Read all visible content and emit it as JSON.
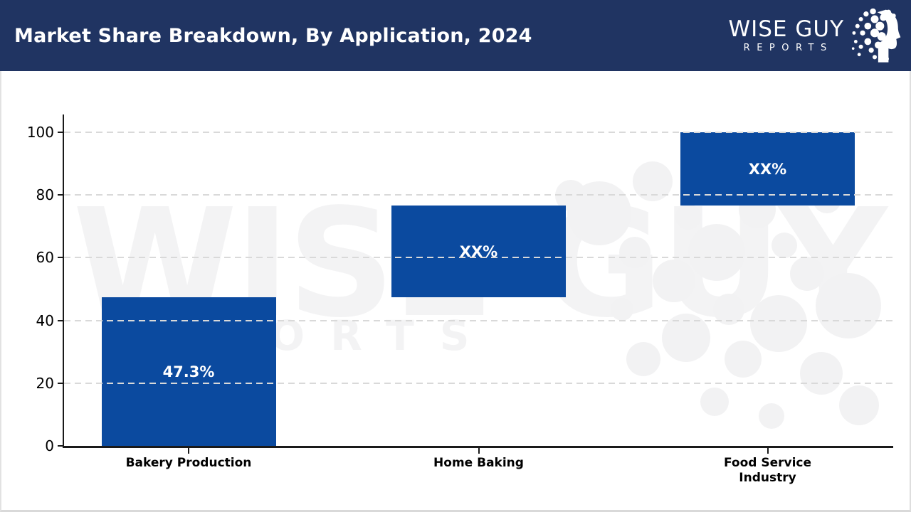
{
  "header": {
    "title": "Market Share Breakdown, By Application, 2024",
    "logo": {
      "line1": "WISE GUY",
      "line2": "REPORTS"
    }
  },
  "watermark": {
    "line1": "WISE GUY",
    "line2": "REPORTS"
  },
  "chart_data": {
    "type": "bar",
    "subtype": "waterfall",
    "title": "Market Share Breakdown, By Application, 2024",
    "categories": [
      "Bakery Production",
      "Home Baking",
      "Food Service Industry"
    ],
    "bars": [
      {
        "category": "Bakery Production",
        "start": 0,
        "end": 47.3,
        "value": 47.3,
        "label": "47.3%"
      },
      {
        "category": "Home Baking",
        "start": 47.3,
        "end": 76.6,
        "value": 29.3,
        "label": "XX%"
      },
      {
        "category": "Food Service Industry",
        "start": 76.6,
        "end": 100,
        "value": 23.4,
        "label": "XX%"
      }
    ],
    "ylim": [
      0,
      105.7
    ],
    "yticks": [
      0,
      20,
      40,
      60,
      80,
      100
    ],
    "ytick_labels": [
      "0",
      "20",
      "40",
      "60",
      "80",
      "100"
    ],
    "xlabel": "",
    "ylabel": "",
    "grid": "horizontal-dashed",
    "legend": "none"
  },
  "colors": {
    "header_bg": "#203462",
    "bar_fill": "#0b4a9f",
    "bar_label_text": "#ffffff",
    "gridline": "#d9d9d9",
    "axis": "#1a1a1a",
    "watermark": "#f3f3f4",
    "title_text": "#ffffff"
  }
}
